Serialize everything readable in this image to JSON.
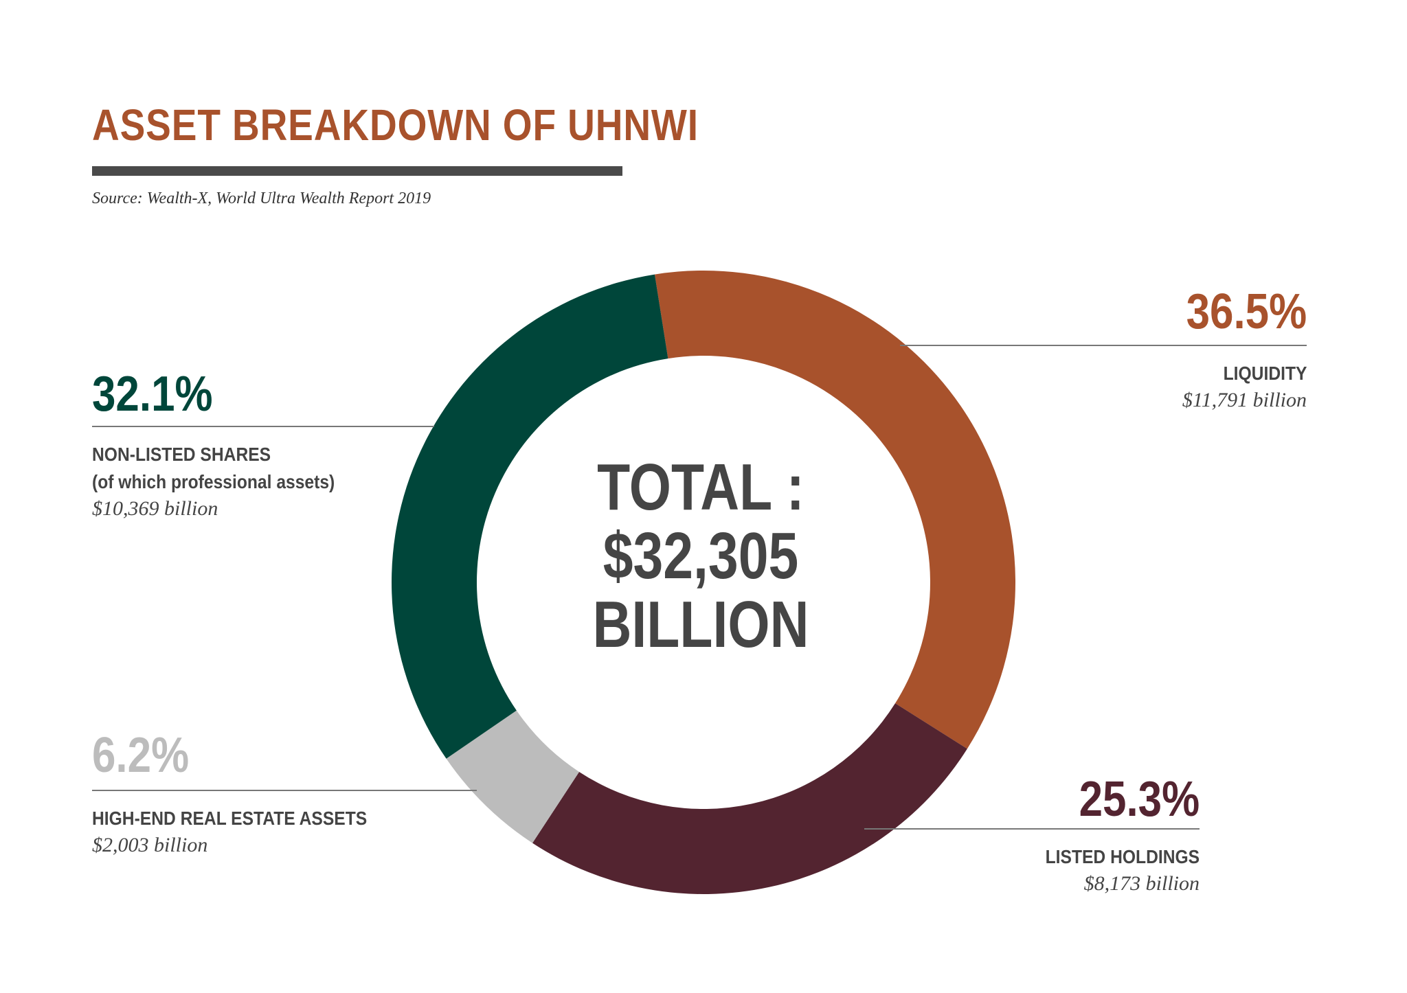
{
  "header": {
    "title": "ASSET BREAKDOWN OF UHNWI",
    "source": "Source: Wealth-X, World Ultra Wealth Report 2019"
  },
  "center": {
    "line1": "TOTAL :",
    "line2": "$32,305",
    "line3": "BILLION"
  },
  "chart_data": {
    "type": "pie",
    "title": "ASSET BREAKDOWN OF UHNWI",
    "total": "$32,305 billion",
    "slices": [
      {
        "name": "LIQUIDITY",
        "percent_label": "36.5%",
        "value": 36.5,
        "amount": "$11,791 billion",
        "color": "#a8522c"
      },
      {
        "name": "LISTED HOLDINGS",
        "percent_label": "25.3%",
        "value": 25.3,
        "amount": "$8,173 billion",
        "color": "#532430"
      },
      {
        "name": "HIGH-END REAL ESTATE ASSETS",
        "percent_label": "6.2%",
        "value": 6.2,
        "amount": "$2,003 billion",
        "color": "#bcbcbc"
      },
      {
        "name": "NON-LISTED SHARES",
        "name_sub": "(of which professional assets)",
        "percent_label": "32.1%",
        "value": 32.1,
        "amount": "$10,369 billion",
        "color": "#00463a"
      }
    ]
  }
}
